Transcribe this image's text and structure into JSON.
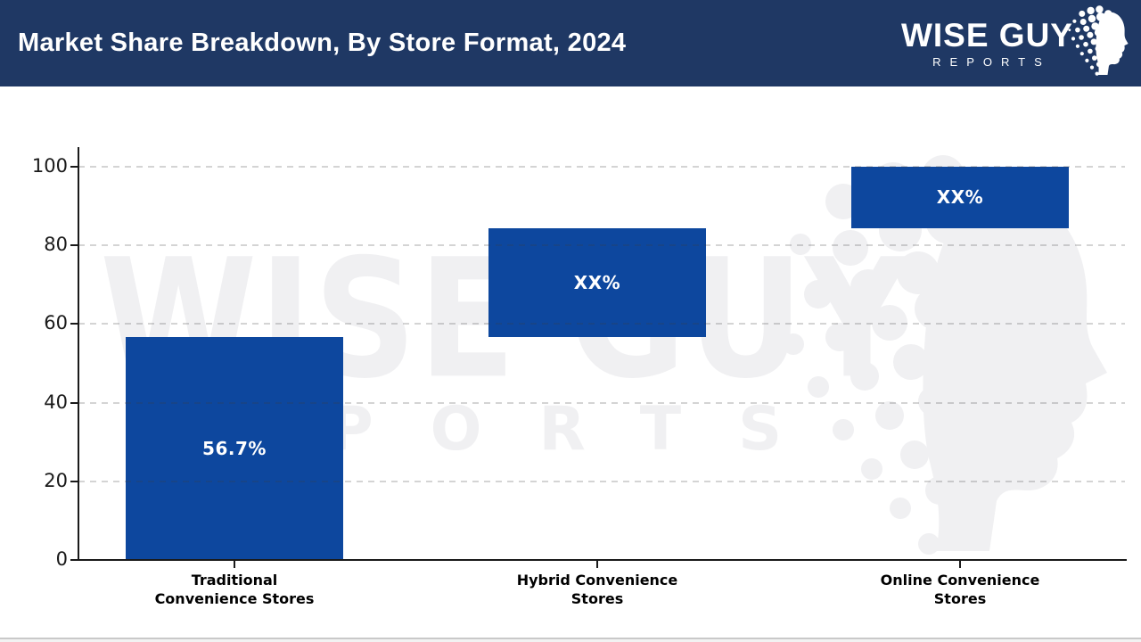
{
  "header": {
    "title": "Market Share Breakdown, By Store Format, 2024",
    "logo": {
      "line1": "WISE GUY",
      "line2": "REPORTS"
    }
  },
  "watermark": {
    "line1": "WISE GUY",
    "line2": "REPORTS"
  },
  "chart_data": {
    "type": "bar",
    "subtype": "waterfall-breakdown",
    "title": "Market Share Breakdown, By Store Format, 2024",
    "xlabel": "",
    "ylabel": "",
    "ylim": [
      0,
      100
    ],
    "yticks": [
      0,
      20,
      40,
      60,
      80,
      100
    ],
    "grid": "horizontal-dashed",
    "legend": "none",
    "bar_color": "#0d479e",
    "bar_label_color": "#ffffff",
    "categories": [
      [
        "Traditional",
        "Convenience Stores"
      ],
      [
        "Hybrid Convenience",
        "Stores"
      ],
      [
        "Online Convenience",
        "Stores"
      ]
    ],
    "segments": [
      {
        "name": "Traditional Convenience Stores",
        "start": 0,
        "end": 56.7,
        "value_label": "56.7%"
      },
      {
        "name": "Hybrid Convenience Stores",
        "start": 56.7,
        "end": 84.4,
        "value_label": "XX%"
      },
      {
        "name": "Online Convenience Stores",
        "start": 84.4,
        "end": 100,
        "value_label": "XX%"
      }
    ]
  },
  "colors": {
    "header_bg": "#1f3864",
    "bar": "#0d479e",
    "watermark": "#f0f0f2",
    "axis": "#1a1a1a",
    "gridline": "#dddddd"
  }
}
